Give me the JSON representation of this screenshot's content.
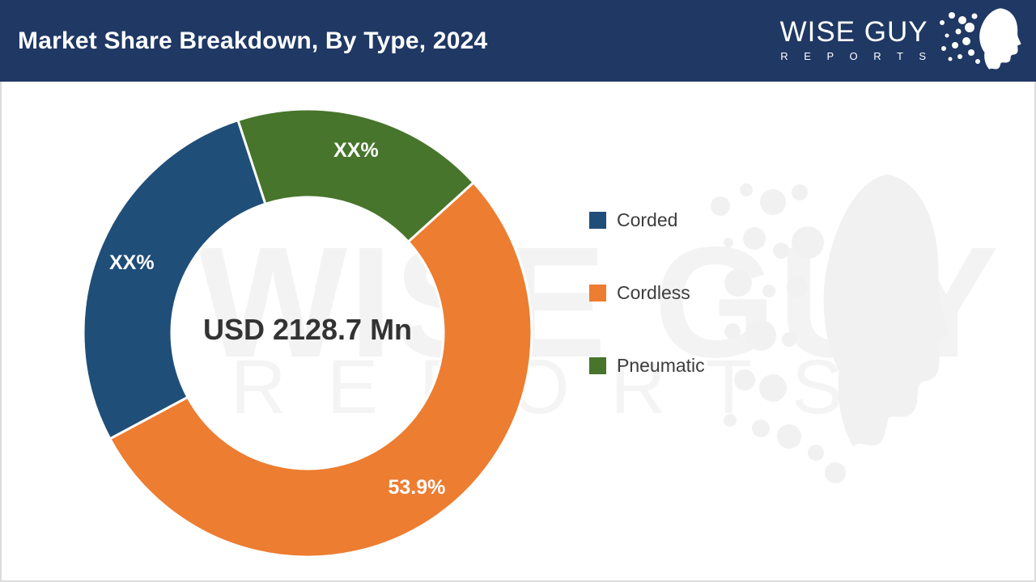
{
  "header": {
    "title": "Market Share Breakdown, By Type, 2024",
    "logo": {
      "line1": "WISE GUY",
      "line2": "R E P O R T S"
    }
  },
  "colors": {
    "header_bg": "#1f3864",
    "corded_blue": "#1f4e79",
    "cordless_orange": "#ed7d31",
    "pneumatic_green": "#47752b"
  },
  "watermark": {
    "line1": "WISE GUY",
    "line2": "R E P O R T S"
  },
  "chart_data": {
    "type": "pie",
    "subtype": "donut",
    "title": "Market Share Breakdown, By Type, 2024",
    "center_label": "USD 2128.7 Mn",
    "slices": [
      {
        "name": "Corded",
        "label": "XX%",
        "value_pct": null,
        "value_pct_estimated": 27.8,
        "color": "#1f4e79"
      },
      {
        "name": "Cordless",
        "label": "53.9%",
        "value_pct": 53.9,
        "value_pct_estimated": 53.9,
        "color": "#ed7d31"
      },
      {
        "name": "Pneumatic",
        "label": "XX%",
        "value_pct": null,
        "value_pct_estimated": 18.3,
        "color": "#47752b"
      }
    ],
    "layout": {
      "legend_position": "right",
      "start_angle_deg": -18.1,
      "draw_order": [
        "Pneumatic",
        "Cordless",
        "Corded"
      ],
      "center": [
        380,
        412
      ],
      "outer_radius": 277,
      "inner_radius": 168,
      "label_radius": 234
    }
  },
  "legend": {
    "items": [
      {
        "label": "Corded",
        "color": "#1f4e79"
      },
      {
        "label": "Cordless",
        "color": "#ed7d31"
      },
      {
        "label": "Pneumatic",
        "color": "#47752b"
      }
    ]
  }
}
